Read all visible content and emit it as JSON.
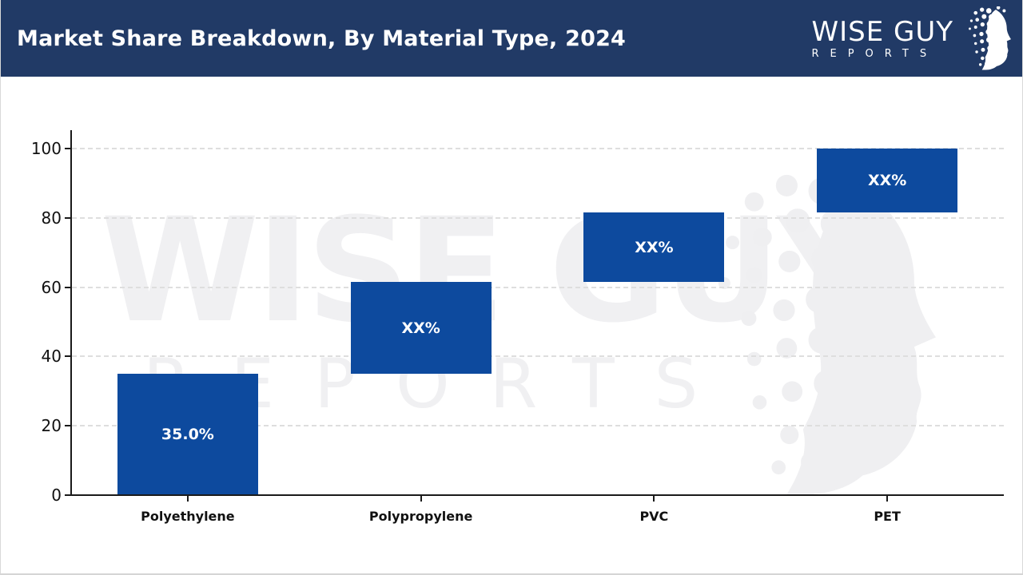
{
  "header": {
    "title": "Market Share Breakdown, By Material Type, 2024",
    "bg_color": "#213a66",
    "logo": {
      "wordmark": "WISE GUY",
      "subtitle": "REPORTS",
      "face_icon": "dotted-face-profile-icon"
    }
  },
  "watermark": {
    "wordmark": "WISE GUY",
    "subtitle": "REPORTS",
    "color": "#f0f0f2"
  },
  "chart_data": {
    "type": "bar",
    "subtype": "waterfall",
    "title": "Market Share Breakdown, By Material Type, 2024",
    "categories": [
      "Polyethylene",
      "Polypropylene",
      "PVC",
      "PET"
    ],
    "segments": [
      {
        "category": "Polyethylene",
        "start": 0,
        "end": 35,
        "label": "35.0%"
      },
      {
        "category": "Polypropylene",
        "start": 35,
        "end": 61.5,
        "label": "XX%"
      },
      {
        "category": "PVC",
        "start": 61.5,
        "end": 81.5,
        "label": "XX%"
      },
      {
        "category": "PET",
        "start": 81.5,
        "end": 100,
        "label": "XX%"
      }
    ],
    "ylim": [
      0,
      100
    ],
    "yticks": [
      0,
      20,
      40,
      60,
      80,
      100
    ],
    "xlabel": "",
    "ylabel": "",
    "grid": "horizontal-dashed",
    "legend": "none",
    "colors": {
      "bar": "#0d4a9e",
      "bar_label": "#ffffff",
      "grid": "#dedede",
      "axis": "#1a1a1a",
      "tick_label": "#111111"
    }
  }
}
